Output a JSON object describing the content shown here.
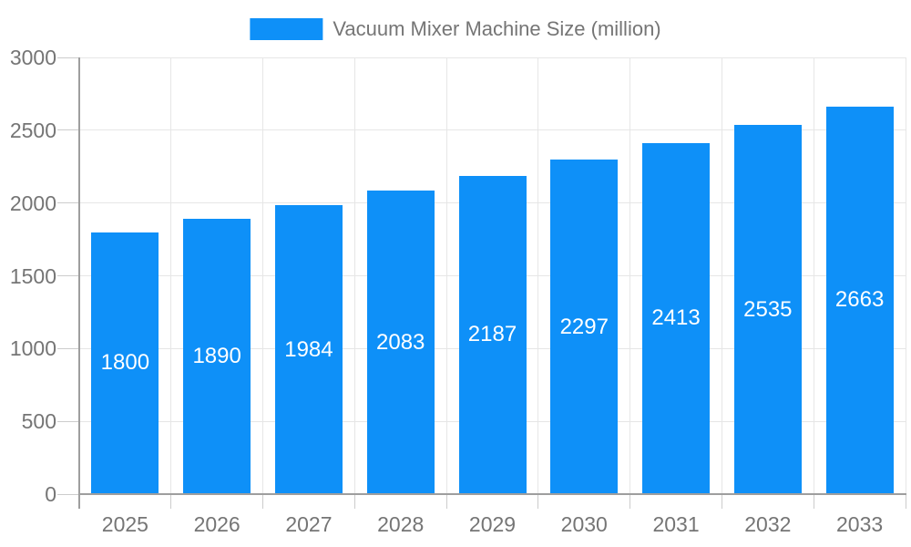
{
  "chart_data": {
    "type": "bar",
    "title": "Vacuum Mixer Machine Size (million)",
    "categories": [
      "2025",
      "2026",
      "2027",
      "2028",
      "2029",
      "2030",
      "2031",
      "2032",
      "2033"
    ],
    "values": [
      1800,
      1890,
      1984,
      2083,
      2187,
      2297,
      2413,
      2535,
      2663
    ],
    "xlabel": "",
    "ylabel": "",
    "ylim": [
      0,
      3000
    ],
    "ytick_step": 500,
    "ytick_labels": [
      "0",
      "500",
      "1000",
      "1500",
      "2000",
      "2500",
      "3000"
    ],
    "grid": true,
    "legend_position": "top-center",
    "bar_labels_inside": true,
    "colors": {
      "bar": "#0e90f8",
      "bar_label": "#ffffff",
      "axis_label": "#757575",
      "legend_text": "#757575",
      "grid_line": "#e6e6e6",
      "axis_line": "#9e9e9e",
      "tick_mark": "#cccccc",
      "background": "#ffffff"
    }
  }
}
